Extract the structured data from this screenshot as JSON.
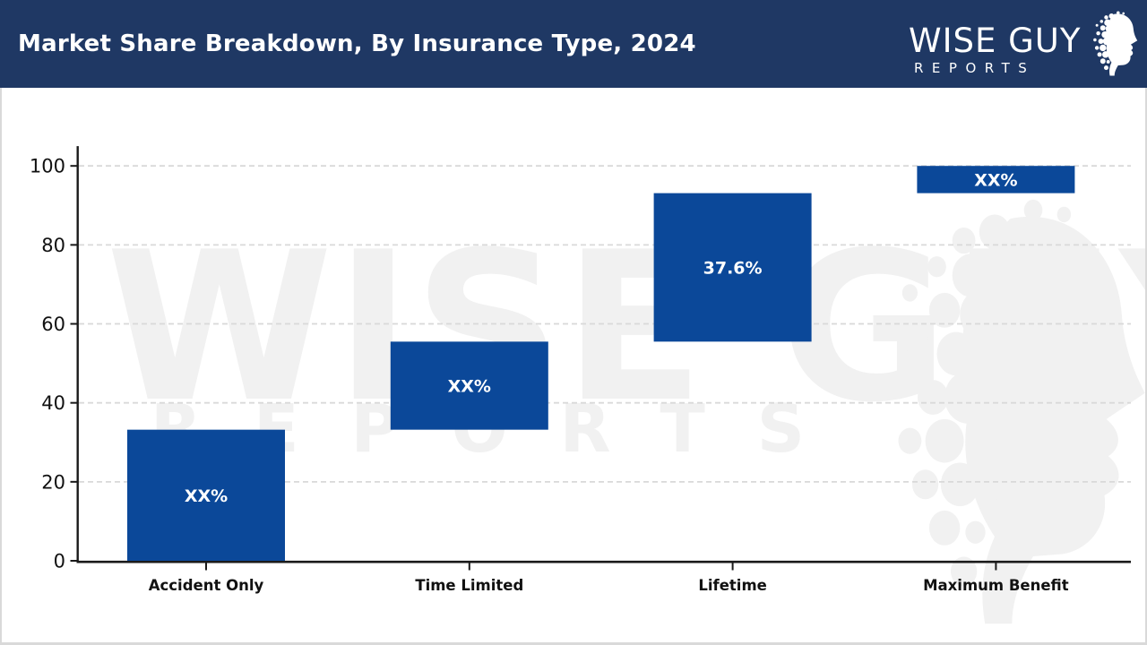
{
  "header": {
    "title": "Market Share Breakdown, By Insurance Type, 2024",
    "logo": {
      "name": "WISE GUY",
      "sub": "REPORTS"
    }
  },
  "watermark": {
    "line1": "WISE GUY",
    "line2": "REPORTS"
  },
  "chart_data": {
    "type": "bar",
    "subtype": "waterfall",
    "title": "Market Share Breakdown, By Insurance Type, 2024",
    "categories": [
      "Accident Only",
      "Time Limited",
      "Lifetime",
      "Maximum Benefit"
    ],
    "segments": [
      {
        "category": "Accident Only",
        "start": 0,
        "end": 33.2,
        "value": 33.2,
        "label": "XX%"
      },
      {
        "category": "Time Limited",
        "start": 33.2,
        "end": 55.5,
        "value": 22.3,
        "label": "XX%"
      },
      {
        "category": "Lifetime",
        "start": 55.5,
        "end": 93.1,
        "value": 37.6,
        "label": "37.6%"
      },
      {
        "category": "Maximum Benefit",
        "start": 93.1,
        "end": 100.0,
        "value": 6.9,
        "label": "XX%"
      }
    ],
    "xlabel": "",
    "ylabel": "",
    "ylim": [
      0,
      105
    ],
    "yticks": [
      0,
      20,
      40,
      60,
      80,
      100
    ],
    "grid": {
      "axis": "y",
      "style": "dashed"
    },
    "legend": "none"
  },
  "colors": {
    "header_bg": "#1f3864",
    "header_text": "#ffffff",
    "bar": "#0b4899",
    "bar_label": "#ffffff",
    "axis": "#1a1a1a",
    "tick_label": "#111111",
    "grid": "#d9d9d9",
    "frame": "#d9d9d9",
    "watermark": "#f1f1f1"
  }
}
